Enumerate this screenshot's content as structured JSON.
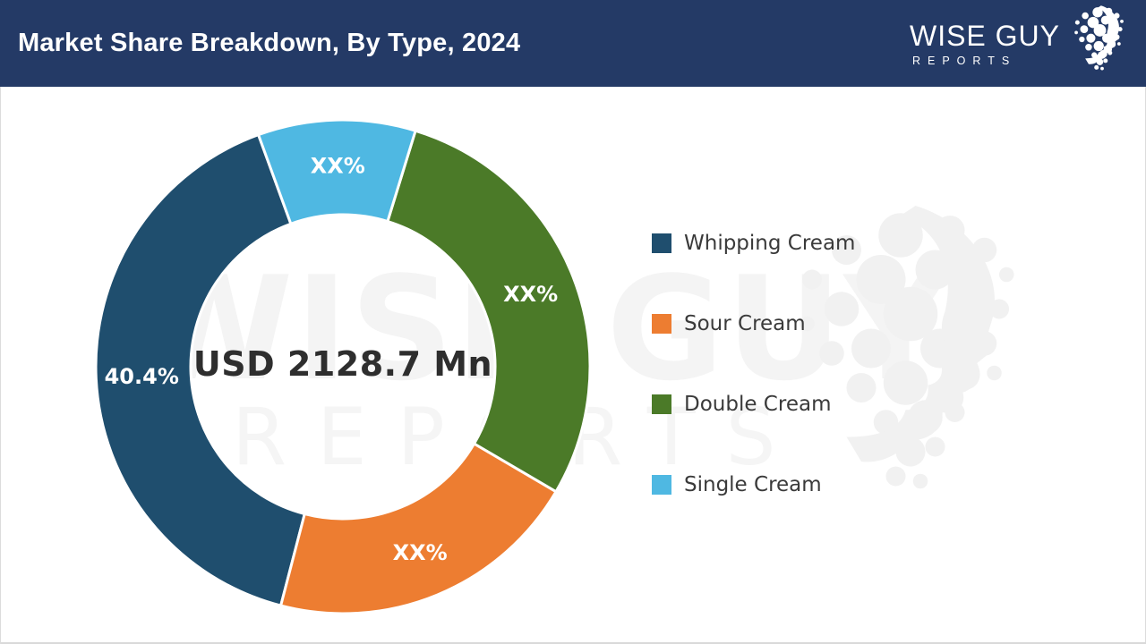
{
  "header": {
    "title": "Market Share Breakdown, By Type, 2024",
    "bg_color": "#243A66",
    "logo": {
      "line1": "WISE GUY",
      "line2": "REPORTS"
    }
  },
  "chart_data": {
    "type": "pie",
    "subtype": "donut",
    "title": "Market Share Breakdown, By Type, 2024",
    "center_label": "USD 2128.7 Mn",
    "legend_position": "right",
    "rotation_deg": -20,
    "direction": "counterclockwise",
    "segments": [
      {
        "label": "Whipping Cream",
        "value": 40.4,
        "display_pct": "40.4%",
        "color": "#1F4E6E"
      },
      {
        "label": "Sour Cream",
        "value": 20.6,
        "display_pct": "XX%",
        "color": "#ED7D31"
      },
      {
        "label": "Double Cream",
        "value": 28.7,
        "display_pct": "XX%",
        "color": "#4B7A28"
      },
      {
        "label": "Single Cream",
        "value": 10.3,
        "display_pct": "XX%",
        "color": "#4FB8E2"
      }
    ],
    "label_color": "#ffffff"
  },
  "watermark": {
    "line1": "WISE GUY",
    "line2": "REPORTS"
  }
}
